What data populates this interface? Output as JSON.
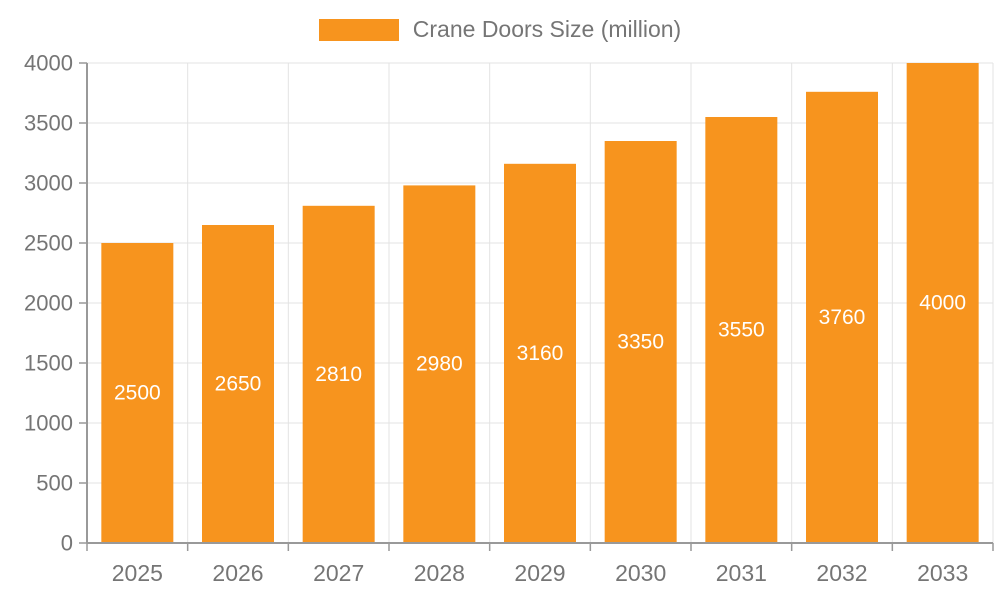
{
  "legend": {
    "label": "Crane Doors Size (million)",
    "swatch_color": "#F7941E",
    "text_color": "#757575"
  },
  "chart_data": {
    "type": "bar",
    "title": "Crane Doors Size (million)",
    "categories": [
      "2025",
      "2026",
      "2027",
      "2028",
      "2029",
      "2030",
      "2031",
      "2032",
      "2033"
    ],
    "series": [
      {
        "name": "Crane Doors Size (million)",
        "color": "#F7941E",
        "values": [
          2500,
          2650,
          2810,
          2980,
          3160,
          3350,
          3550,
          3760,
          4000
        ]
      }
    ],
    "xlabel": "",
    "ylabel": "",
    "ylim": [
      0,
      4000
    ],
    "y_ticks": [
      0,
      500,
      1000,
      1500,
      2000,
      2500,
      3000,
      3500,
      4000
    ],
    "grid": true,
    "legend_position": "top",
    "bar_labels": "inside-center",
    "label_color": "#ffffff",
    "axis_color": "#999999",
    "grid_color": "#e3e3e3",
    "tick_text_color": "#757575"
  }
}
